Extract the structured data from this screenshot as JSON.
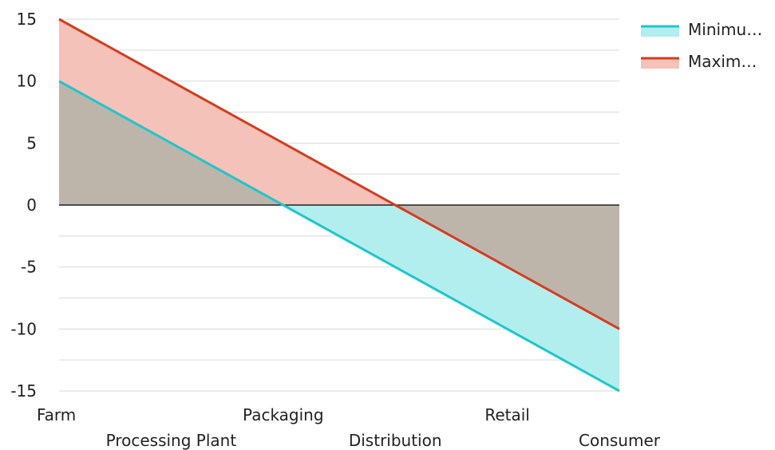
{
  "chart_data": {
    "type": "area",
    "categories": [
      "Farm",
      "Processing Plant",
      "Packaging",
      "Distribution",
      "Retail",
      "Consumer"
    ],
    "series": [
      {
        "name": "Minimu…",
        "values": [
          10,
          5,
          0,
          -5,
          -10,
          -15
        ],
        "line_color": "#1cc7cc",
        "fill_color": "#b2eeee"
      },
      {
        "name": "Maxim…",
        "values": [
          15,
          10,
          5,
          0,
          -5,
          -10
        ],
        "line_color": "#d63c1e",
        "fill_color": "#f4c2b8"
      }
    ],
    "overlap_fill_color": "#bdb5aa",
    "ylim": [
      -15,
      15
    ],
    "yticks": [
      15,
      10,
      5,
      0,
      -5,
      -10,
      -15
    ],
    "ytick_labels": [
      "15",
      "10",
      "5",
      "0",
      "-5",
      "-10",
      "-15"
    ],
    "title": "",
    "xlabel": "",
    "ylabel": "",
    "grid": true,
    "legend_position": "top-right"
  }
}
